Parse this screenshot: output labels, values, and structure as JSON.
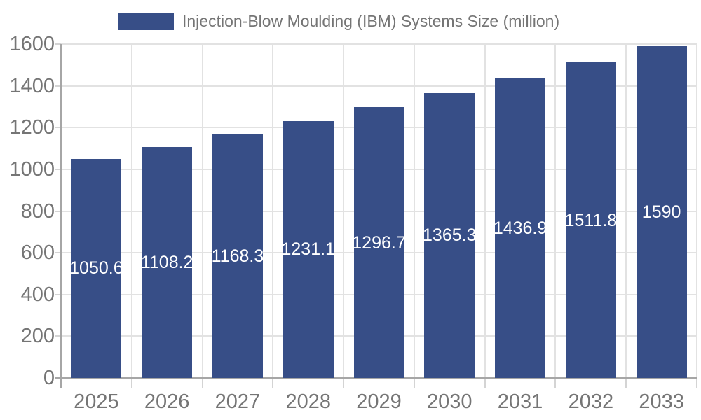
{
  "chart_data": {
    "type": "bar",
    "title": "Injection-Blow Moulding (IBM) Systems Size (million)",
    "legend_position": "top",
    "categories": [
      "2025",
      "2026",
      "2027",
      "2028",
      "2029",
      "2030",
      "2031",
      "2032",
      "2033"
    ],
    "series": [
      {
        "name": "Injection-Blow Moulding (IBM) Systems Size (million)",
        "values": [
          1050.6,
          1108.2,
          1168.3,
          1231.1,
          1296.7,
          1365.3,
          1436.9,
          1511.8,
          1590
        ]
      }
    ],
    "value_labels": [
      "1050.6",
      "1108.2",
      "1168.3",
      "1231.1",
      "1296.7",
      "1365.3",
      "1436.9",
      "1511.8",
      "1590"
    ],
    "xlabel": "",
    "ylabel": "",
    "ylim": [
      0,
      1600
    ],
    "yticks": [
      0,
      200,
      400,
      600,
      800,
      1000,
      1200,
      1400,
      1600
    ],
    "grid": true,
    "colors": {
      "bar": "#374E87",
      "bar_label": "#FFFFFF",
      "axis_text": "#757575",
      "legend_text": "#757575",
      "gridline": "#E2E2E2",
      "axis_line": "#A6A6A6",
      "tick": "#D4D4D4",
      "background": "#FFFFFF"
    }
  }
}
